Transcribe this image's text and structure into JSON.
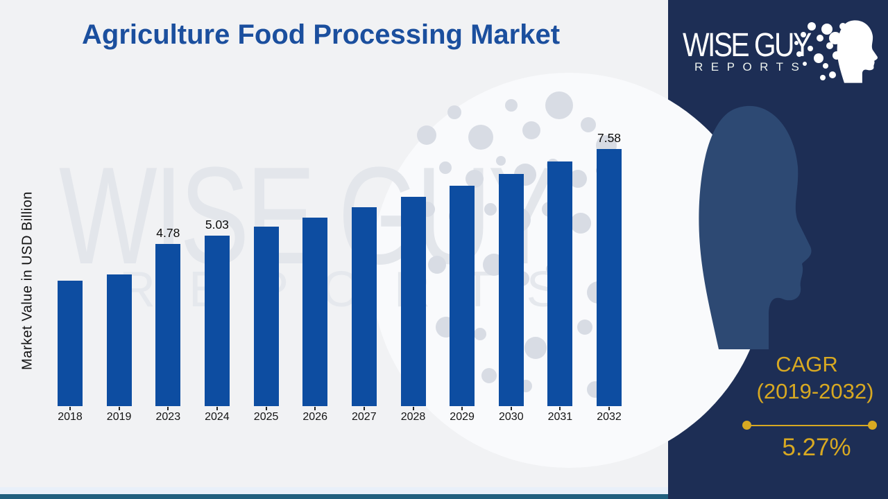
{
  "title": "Agriculture Food Processing Market",
  "y_axis_label": "Market Value in USD Billion",
  "watermark": {
    "line1": "WISE GUY",
    "line2": "REPORTS"
  },
  "logo": {
    "name_line": "WISE GUY",
    "sub_line": "REPORTS"
  },
  "cagr": {
    "heading": "CAGR",
    "range": "(2019-2032)",
    "value": "5.27%"
  },
  "colors": {
    "bar": "#0d4da1",
    "title_text": "#1b4f9e",
    "panel": "#1d2e55",
    "panel_face": "#2d4973",
    "circle": "#f9fafc",
    "watermark_dot": "#d8dce4",
    "gold": "#d8a922",
    "bottom_strip_light": "#e8f0f9",
    "bottom_strip_teal": "#20607f"
  },
  "chart_data": {
    "type": "bar",
    "categories": [
      "2018",
      "2019",
      "2023",
      "2024",
      "2025",
      "2026",
      "2027",
      "2028",
      "2029",
      "2030",
      "2031",
      "2032"
    ],
    "values": [
      3.7,
      3.89,
      4.78,
      5.03,
      5.3,
      5.57,
      5.87,
      6.18,
      6.5,
      6.85,
      7.21,
      7.58
    ],
    "data_labels": {
      "2023": "4.78",
      "2024": "5.03",
      "2032": "7.58"
    },
    "title": "Agriculture Food Processing Market",
    "xlabel": "",
    "ylabel": "Market Value in USD Billion",
    "ylim": [
      0,
      8
    ],
    "grid": false,
    "legend": null,
    "bar_color": "#0d4da1",
    "unit": "USD Billion"
  }
}
